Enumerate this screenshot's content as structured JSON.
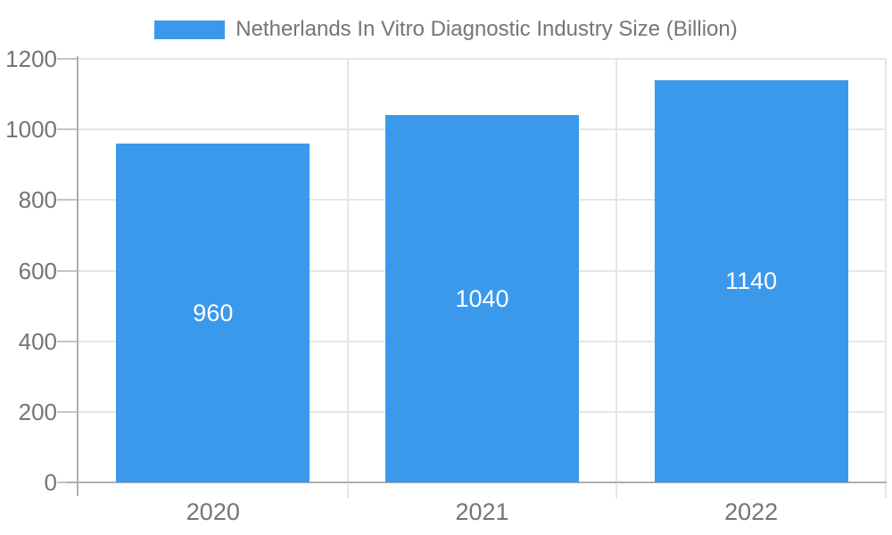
{
  "legend": {
    "series_label": "Netherlands In Vitro Diagnostic Industry Size (Billion)"
  },
  "chart_data": {
    "type": "bar",
    "title": "Netherlands In Vitro Diagnostic Industry Size (Billion)",
    "categories": [
      "2020",
      "2021",
      "2022"
    ],
    "values": [
      960,
      1040,
      1140
    ],
    "bar_value_labels": [
      "960",
      "1040",
      "1140"
    ],
    "xlabel": "",
    "ylabel": "",
    "ylim": [
      0,
      1200
    ],
    "yticks": [
      0,
      200,
      400,
      600,
      800,
      1000,
      1200
    ],
    "grid": true,
    "legend_position": "top",
    "colors": {
      "bar": "#3b99ec",
      "axis": "#aeaeae",
      "grid": "#e6e6e6",
      "tick": "#c4c4c4",
      "tick_label": "#757575",
      "bar_label": "#ffffff",
      "background": "#ffffff"
    }
  }
}
